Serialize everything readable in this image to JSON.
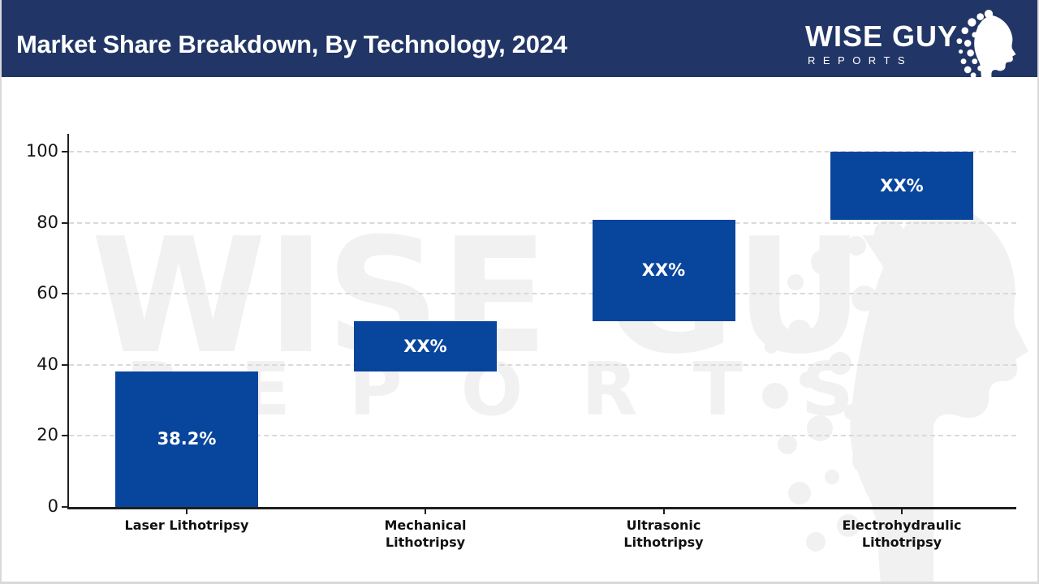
{
  "header": {
    "title": "Market Share Breakdown, By Technology, 2024",
    "background_color": "#213666",
    "logo": {
      "line1": "WISE GUY",
      "line2": "REPORTS",
      "head_icon": "dotted-face-profile"
    }
  },
  "watermark": {
    "line1": "WISE GUY",
    "line2": "REPORTS",
    "head_icon": "dotted-face-profile",
    "color": "#f1f1f1"
  },
  "colors": {
    "bar": "#08459C",
    "grid": "#dadada",
    "axis": "#1f1f1f",
    "bar_value_text": "#ffffff"
  },
  "chart_data": {
    "type": "bar",
    "subtype": "waterfall",
    "title": "Market Share Breakdown, By Technology, 2024",
    "xlabel": "",
    "ylabel": "",
    "ylim": [
      0,
      100
    ],
    "yticks": [
      0,
      20,
      40,
      60,
      80,
      100
    ],
    "grid": "horizontal-dashed",
    "legend": "none",
    "bar_color": "#08459C",
    "categories": [
      "Laser Lithotripsy",
      "Mechanical\nLithotripsy",
      "Ultrasonic\nLithotripsy",
      "Electrohydraulic\nLithotripsy"
    ],
    "segments": [
      {
        "category": "Laser Lithotripsy",
        "start": 0,
        "end": 38.2,
        "value_label": "38.2%"
      },
      {
        "category": "Mechanical Lithotripsy",
        "start": 38.2,
        "end": 52.3,
        "value_label": "XX%"
      },
      {
        "category": "Ultrasonic Lithotripsy",
        "start": 52.3,
        "end": 80.9,
        "value_label": "XX%"
      },
      {
        "category": "Electrohydraulic Lithotripsy",
        "start": 80.9,
        "end": 100,
        "value_label": "XX%"
      }
    ]
  }
}
